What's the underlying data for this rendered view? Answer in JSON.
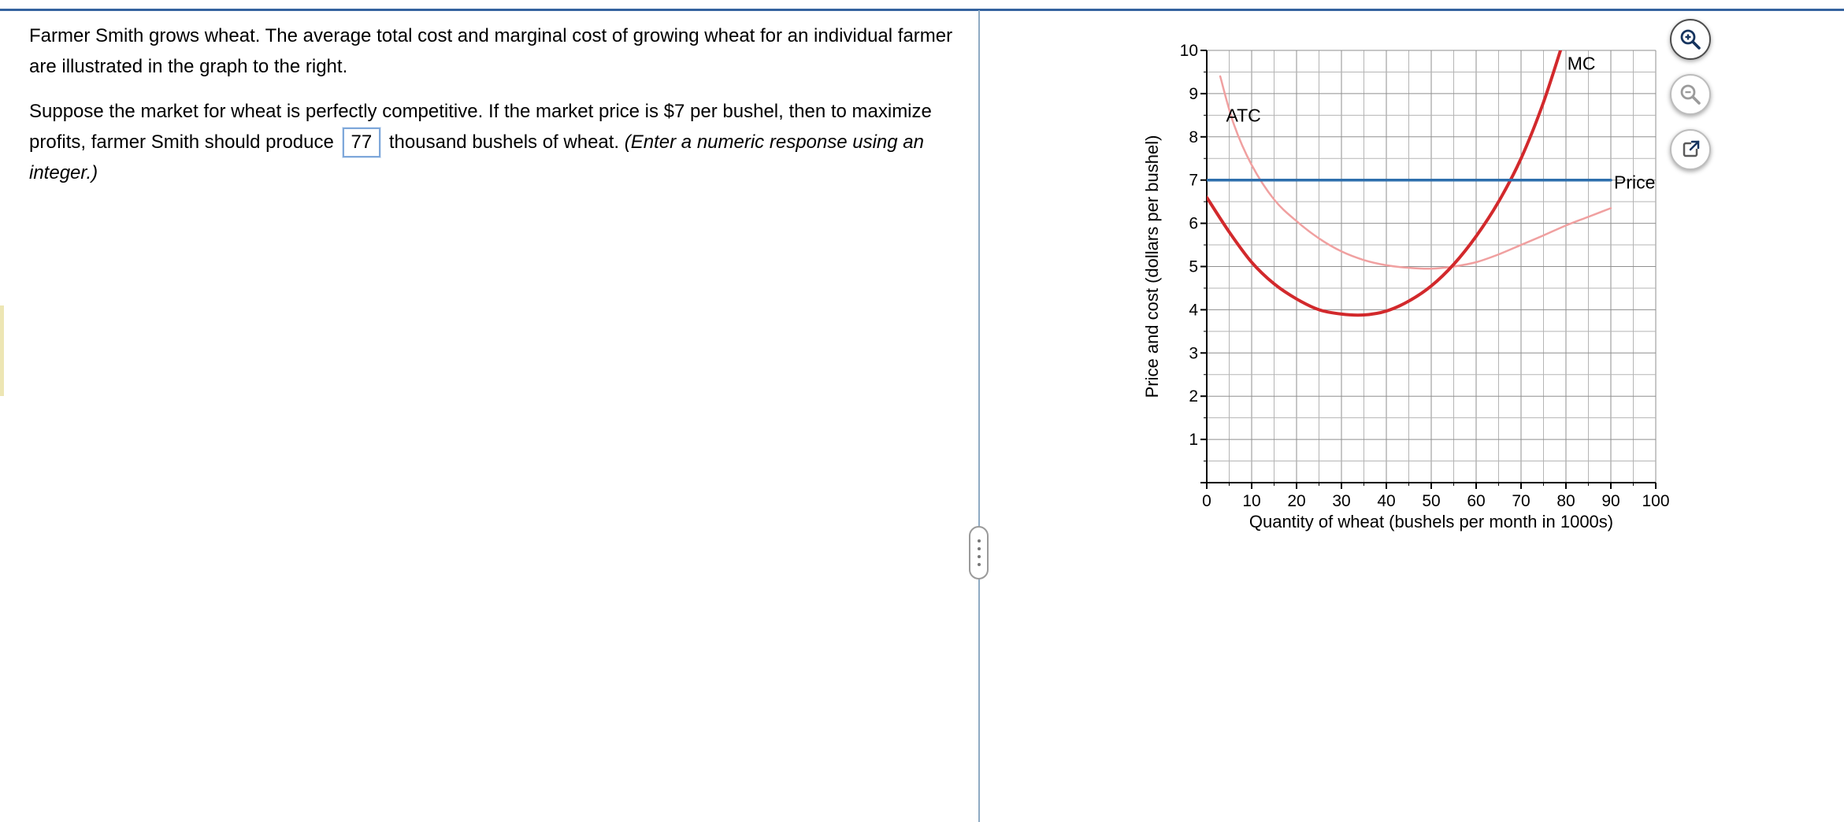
{
  "window": {
    "top_border_color": "#35639F",
    "divider_color": "#8FABC4"
  },
  "question": {
    "paragraph1": "Farmer Smith grows wheat.  The average total cost and marginal cost of growing wheat for an individual farmer are illustrated in the graph to the right.",
    "paragraph2": {
      "before_input": "Suppose the market for wheat is perfectly competitive.  If the market price is $7 per bushel, then to maximize profits, farmer Smith should produce",
      "answer_value": "77",
      "after_input": "thousand bushels of wheat.",
      "note_italic": "(Enter a numeric response using an integer.)"
    }
  },
  "toolbar": {
    "buttons": [
      {
        "name": "zoom-in",
        "icon": "magnifier-plus-icon"
      },
      {
        "name": "zoom-out",
        "icon": "magnifier-minus-icon"
      },
      {
        "name": "open-graph-in-new-window",
        "icon": "external-link-icon"
      }
    ]
  },
  "splitter": {
    "orientation": "vertical",
    "handle_dots": 4
  },
  "chart_data": {
    "type": "line",
    "title": "",
    "xlabel": "Quantity of wheat (bushels per month in 1000s)",
    "ylabel": "Price and cost (dollars per bushel)",
    "xlim": [
      0,
      100
    ],
    "ylim": [
      0,
      10
    ],
    "x_ticks": [
      0,
      10,
      20,
      30,
      40,
      50,
      60,
      70,
      80,
      90,
      100
    ],
    "y_ticks": [
      1,
      2,
      3,
      4,
      5,
      6,
      7,
      8,
      9,
      10
    ],
    "minor_grid_step_x": 5,
    "minor_grid_step_y": 0.5,
    "major_grid_step_x": 10,
    "major_grid_step_y": 1,
    "grid": true,
    "grid_color_minor": "#b5b5b5",
    "grid_color_major": "#8f8f8f",
    "legend_position": "inline-labels",
    "series": [
      {
        "name": "ATC",
        "color": "#F0A0A0",
        "width": 2.5,
        "label_pos": [
          4.3,
          8.35
        ],
        "points": [
          [
            3,
            9.4
          ],
          [
            6,
            8.3
          ],
          [
            10,
            7.35
          ],
          [
            15,
            6.55
          ],
          [
            20,
            6.05
          ],
          [
            25,
            5.65
          ],
          [
            30,
            5.35
          ],
          [
            35,
            5.15
          ],
          [
            40,
            5.03
          ],
          [
            45,
            4.97
          ],
          [
            50,
            4.95
          ],
          [
            55,
            5.0
          ],
          [
            60,
            5.1
          ],
          [
            65,
            5.28
          ],
          [
            70,
            5.5
          ],
          [
            75,
            5.72
          ],
          [
            80,
            5.95
          ],
          [
            85,
            6.15
          ],
          [
            90,
            6.35
          ]
        ]
      },
      {
        "name": "MC",
        "color": "#D2292C",
        "width": 4,
        "label_pos": [
          80.3,
          9.55
        ],
        "points": [
          [
            0,
            6.6
          ],
          [
            5,
            5.8
          ],
          [
            10,
            5.1
          ],
          [
            15,
            4.6
          ],
          [
            20,
            4.25
          ],
          [
            25,
            4.0
          ],
          [
            30,
            3.9
          ],
          [
            35,
            3.88
          ],
          [
            40,
            3.97
          ],
          [
            45,
            4.2
          ],
          [
            50,
            4.55
          ],
          [
            55,
            5.05
          ],
          [
            60,
            5.7
          ],
          [
            65,
            6.5
          ],
          [
            70,
            7.5
          ],
          [
            75,
            8.8
          ],
          [
            80,
            10.4
          ]
        ]
      },
      {
        "name": "Price",
        "color": "#2E6FAD",
        "width": 3.5,
        "label_pos": [
          90.7,
          6.8
        ],
        "points": [
          [
            0,
            7
          ],
          [
            90,
            7
          ]
        ]
      }
    ]
  }
}
